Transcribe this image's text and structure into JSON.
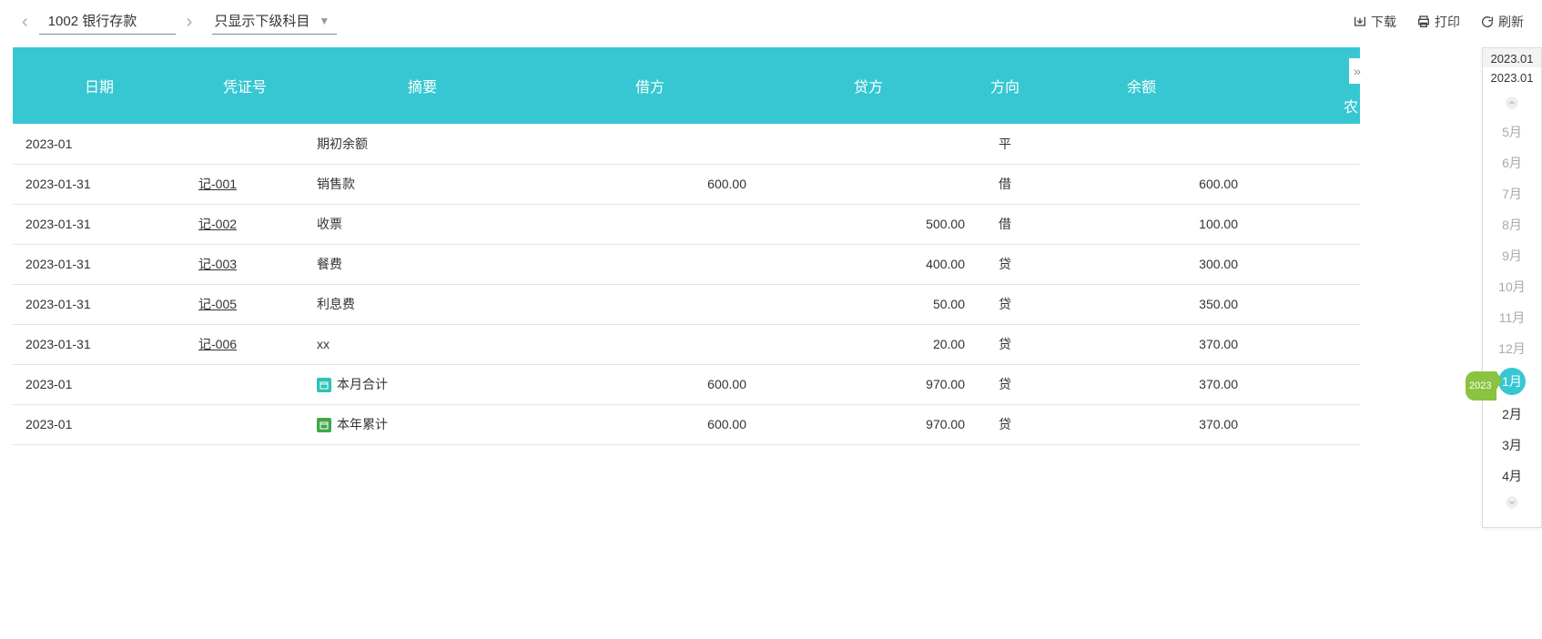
{
  "toolbar": {
    "account_label": "1002  银行存款",
    "filter_label": "只显示下级科目",
    "download_label": "下载",
    "print_label": "打印",
    "refresh_label": "刷新"
  },
  "table": {
    "headers": {
      "date": "日期",
      "voucher": "凭证号",
      "summary": "摘要",
      "debit": "借方",
      "credit": "贷方",
      "direction": "方向",
      "balance": "余额",
      "extra": "农"
    },
    "rows": [
      {
        "date": "2023-01",
        "voucher": "",
        "summary": "期初余额",
        "summary_type": "plain",
        "debit": "",
        "credit": "",
        "direction": "平",
        "balance": ""
      },
      {
        "date": "2023-01-31",
        "voucher": "记-001",
        "summary": "销售款",
        "summary_type": "plain",
        "debit": "600.00",
        "credit": "",
        "direction": "借",
        "balance": "600.00"
      },
      {
        "date": "2023-01-31",
        "voucher": "记-002",
        "summary": "收票",
        "summary_type": "plain",
        "debit": "",
        "credit": "500.00",
        "direction": "借",
        "balance": "100.00"
      },
      {
        "date": "2023-01-31",
        "voucher": "记-003",
        "summary": "餐费",
        "summary_type": "plain",
        "debit": "",
        "credit": "400.00",
        "direction": "贷",
        "balance": "300.00"
      },
      {
        "date": "2023-01-31",
        "voucher": "记-005",
        "summary": "利息费",
        "summary_type": "plain",
        "debit": "",
        "credit": "50.00",
        "direction": "贷",
        "balance": "350.00"
      },
      {
        "date": "2023-01-31",
        "voucher": "记-006",
        "summary": "xx",
        "summary_type": "plain",
        "debit": "",
        "credit": "20.00",
        "direction": "贷",
        "balance": "370.00"
      },
      {
        "date": "2023-01",
        "voucher": "",
        "summary": "本月合计",
        "summary_type": "month",
        "debit": "600.00",
        "credit": "970.00",
        "direction": "贷",
        "balance": "370.00"
      },
      {
        "date": "2023-01",
        "voucher": "",
        "summary": "本年累计",
        "summary_type": "year",
        "debit": "600.00",
        "credit": "970.00",
        "direction": "贷",
        "balance": "370.00"
      }
    ]
  },
  "period_panel": {
    "top1": "2023.01",
    "top2": "2023.01",
    "year_badge": "2023",
    "months": [
      {
        "label": "5月",
        "state": "past"
      },
      {
        "label": "6月",
        "state": "past"
      },
      {
        "label": "7月",
        "state": "past"
      },
      {
        "label": "8月",
        "state": "past"
      },
      {
        "label": "9月",
        "state": "past"
      },
      {
        "label": "10月",
        "state": "past"
      },
      {
        "label": "11月",
        "state": "past"
      },
      {
        "label": "12月",
        "state": "past"
      },
      {
        "label": "1月",
        "state": "active"
      },
      {
        "label": "2月",
        "state": "future"
      },
      {
        "label": "3月",
        "state": "future"
      },
      {
        "label": "4月",
        "state": "future"
      }
    ]
  },
  "colors": {
    "header_bg": "#37c7d2",
    "badge_month": "#2dc3b5",
    "badge_year": "#3fa84a",
    "year_pill": "#8ac340"
  }
}
